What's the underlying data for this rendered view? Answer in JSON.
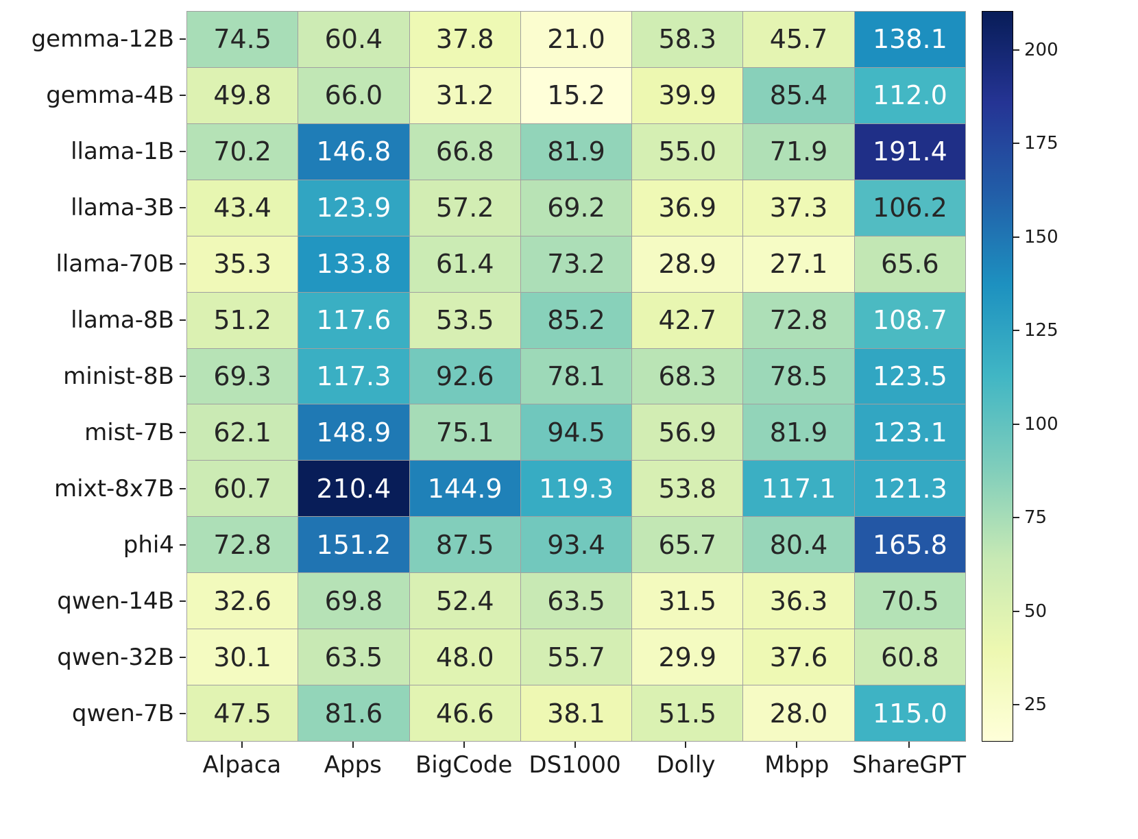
{
  "chart_data": {
    "type": "heatmap",
    "title": "",
    "xlabel": "",
    "ylabel": "",
    "rows": [
      "gemma-12B",
      "gemma-4B",
      "llama-1B",
      "llama-3B",
      "llama-70B",
      "llama-8B",
      "minist-8B",
      "mist-7B",
      "mixt-8x7B",
      "phi4",
      "qwen-14B",
      "qwen-32B",
      "qwen-7B"
    ],
    "columns": [
      "Alpaca",
      "Apps",
      "BigCode",
      "DS1000",
      "Dolly",
      "Mbpp",
      "ShareGPT"
    ],
    "values": [
      [
        74.5,
        60.4,
        37.8,
        21.0,
        58.3,
        45.7,
        138.1
      ],
      [
        49.8,
        66.0,
        31.2,
        15.2,
        39.9,
        85.4,
        112.0
      ],
      [
        70.2,
        146.8,
        66.8,
        81.9,
        55.0,
        71.9,
        191.4
      ],
      [
        43.4,
        123.9,
        57.2,
        69.2,
        36.9,
        37.3,
        106.2
      ],
      [
        35.3,
        133.8,
        61.4,
        73.2,
        28.9,
        27.1,
        65.6
      ],
      [
        51.2,
        117.6,
        53.5,
        85.2,
        42.7,
        72.8,
        108.7
      ],
      [
        69.3,
        117.3,
        92.6,
        78.1,
        68.3,
        78.5,
        123.5
      ],
      [
        62.1,
        148.9,
        75.1,
        94.5,
        56.9,
        81.9,
        123.1
      ],
      [
        60.7,
        210.4,
        144.9,
        119.3,
        53.8,
        117.1,
        121.3
      ],
      [
        72.8,
        151.2,
        87.5,
        93.4,
        65.7,
        80.4,
        165.8
      ],
      [
        32.6,
        69.8,
        52.4,
        63.5,
        31.5,
        36.3,
        70.5
      ],
      [
        30.1,
        63.5,
        48.0,
        55.7,
        29.9,
        37.6,
        60.8
      ],
      [
        47.5,
        81.6,
        46.6,
        38.1,
        51.5,
        28.0,
        115.0
      ]
    ],
    "value_format_decimals": 1,
    "vmin": 15.2,
    "vmax": 210.4,
    "colormap": "YlGnBu",
    "colormap_stops": [
      "#ffffd9",
      "#edf8b1",
      "#c7e9b4",
      "#7fcdbb",
      "#41b6c4",
      "#1d91c0",
      "#225ea8",
      "#253494",
      "#081d58"
    ],
    "gridline_color": "#a0a0a0",
    "annot_color_dark": "#262626",
    "annot_color_light": "#ffffff",
    "legend_position": "right",
    "grid": true,
    "colorbar": {
      "ticks": [
        25,
        50,
        75,
        100,
        125,
        150,
        175,
        200
      ]
    }
  }
}
